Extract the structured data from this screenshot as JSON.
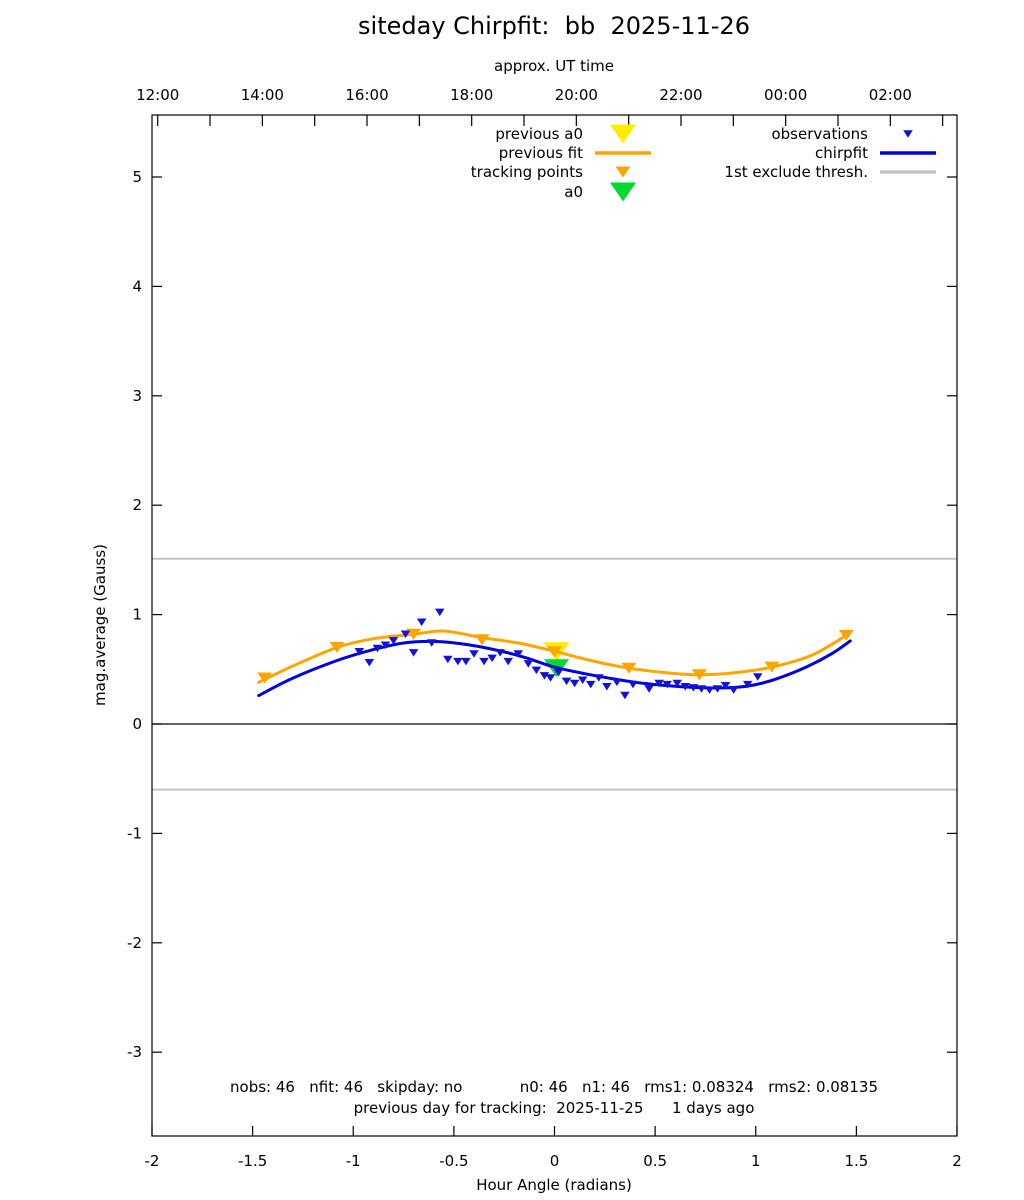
{
  "title": "siteday Chirpfit:  bb  2025-11-26",
  "footer": {
    "stats_line1": "nobs: 46   nfit: 46   skipday: no            n0: 46   n1: 46   rms1: 0.08324   rms2: 0.08135",
    "stats_line2": "previous day for tracking:  2025-11-25      1 days ago"
  },
  "chart_data": {
    "type": "scatter",
    "title": "siteday Chirpfit:  bb  2025-11-26",
    "top_axis": {
      "label": "approx. UT time",
      "tick_labels": [
        "12:00",
        "14:00",
        "16:00",
        "18:00",
        "20:00",
        "22:00",
        "00:00",
        "02:00"
      ],
      "hourly_ticks": [
        "12:00",
        "13:00",
        "14:00",
        "15:00",
        "16:00",
        "17:00",
        "18:00",
        "19:00",
        "20:00",
        "21:00",
        "22:00",
        "23:00",
        "00:00",
        "01:00",
        "02:00",
        "03:00"
      ]
    },
    "x_axis": {
      "label": "Hour Angle (radians)",
      "min": -2,
      "max": 2,
      "ticks": [
        -2,
        -1.5,
        -1,
        -0.5,
        0,
        0.5,
        1,
        1.5,
        2
      ],
      "tick_labels": [
        "-2",
        "-1.5",
        "-1",
        "-0.5",
        "0",
        "0.5",
        "1",
        "1.5",
        "2"
      ]
    },
    "y_axis": {
      "label": "mag.average (Gauss)",
      "min": -3.77,
      "max": 5.57,
      "ticks": [
        -3,
        -2,
        -1,
        0,
        1,
        2,
        3,
        4,
        5
      ],
      "tick_labels": [
        "-3",
        "-2",
        "-1",
        "0",
        "1",
        "2",
        "3",
        "4",
        "5"
      ]
    },
    "zero_line_y": 0,
    "exclude_thresholds": [
      1.51,
      -0.6
    ],
    "grid": "off",
    "legend_position": "top-inside",
    "colors": {
      "observations": "#1212d9",
      "chirpfit": "#0000e0",
      "previous_fit": "#ffa500",
      "tracking": "#ffa500",
      "previous_a0": "#ffec00",
      "a0": "#00d92e",
      "threshold": "#c4c4c4",
      "zero_line": "#000000"
    },
    "series": {
      "observations": [
        [
          -0.97,
          0.66
        ],
        [
          -0.92,
          0.56
        ],
        [
          -0.88,
          0.69
        ],
        [
          -0.84,
          0.72
        ],
        [
          -0.8,
          0.76
        ],
        [
          -0.74,
          0.82
        ],
        [
          -0.7,
          0.65
        ],
        [
          -0.66,
          0.93
        ],
        [
          -0.61,
          0.74
        ],
        [
          -0.57,
          1.02
        ],
        [
          -0.53,
          0.59
        ],
        [
          -0.48,
          0.57
        ],
        [
          -0.44,
          0.57
        ],
        [
          -0.4,
          0.64
        ],
        [
          -0.35,
          0.57
        ],
        [
          -0.31,
          0.6
        ],
        [
          -0.27,
          0.65
        ],
        [
          -0.23,
          0.57
        ],
        [
          -0.18,
          0.64
        ],
        [
          -0.13,
          0.55
        ],
        [
          -0.09,
          0.49
        ],
        [
          -0.05,
          0.44
        ],
        [
          -0.02,
          0.42
        ],
        [
          0.02,
          0.47
        ],
        [
          0.06,
          0.39
        ],
        [
          0.1,
          0.37
        ],
        [
          0.14,
          0.4
        ],
        [
          0.18,
          0.36
        ],
        [
          0.22,
          0.42
        ],
        [
          0.26,
          0.34
        ],
        [
          0.31,
          0.38
        ],
        [
          0.35,
          0.26
        ],
        [
          0.39,
          0.36
        ],
        [
          0.47,
          0.32
        ],
        [
          0.52,
          0.37
        ],
        [
          0.56,
          0.36
        ],
        [
          0.61,
          0.37
        ],
        [
          0.65,
          0.34
        ],
        [
          0.69,
          0.33
        ],
        [
          0.73,
          0.32
        ],
        [
          0.77,
          0.31
        ],
        [
          0.81,
          0.32
        ],
        [
          0.85,
          0.35
        ],
        [
          0.89,
          0.31
        ],
        [
          0.96,
          0.36
        ],
        [
          1.01,
          0.43
        ]
      ],
      "chirpfit_curve": [
        [
          -1.47,
          0.26
        ],
        [
          -1.3,
          0.42
        ],
        [
          -1.08,
          0.58
        ],
        [
          -0.9,
          0.68
        ],
        [
          -0.75,
          0.74
        ],
        [
          -0.6,
          0.755
        ],
        [
          -0.45,
          0.73
        ],
        [
          -0.3,
          0.68
        ],
        [
          -0.15,
          0.61
        ],
        [
          0.0,
          0.52
        ],
        [
          0.15,
          0.46
        ],
        [
          0.3,
          0.41
        ],
        [
          0.45,
          0.37
        ],
        [
          0.6,
          0.345
        ],
        [
          0.75,
          0.33
        ],
        [
          0.9,
          0.335
        ],
        [
          1.0,
          0.36
        ],
        [
          1.1,
          0.41
        ],
        [
          1.25,
          0.52
        ],
        [
          1.38,
          0.645
        ],
        [
          1.47,
          0.76
        ]
      ],
      "previous_fit_curve": [
        [
          -1.47,
          0.38
        ],
        [
          -1.3,
          0.53
        ],
        [
          -1.08,
          0.7
        ],
        [
          -0.9,
          0.78
        ],
        [
          -0.7,
          0.82
        ],
        [
          -0.55,
          0.85
        ],
        [
          -0.36,
          0.79
        ],
        [
          -0.18,
          0.74
        ],
        [
          0.0,
          0.665
        ],
        [
          0.18,
          0.58
        ],
        [
          0.37,
          0.51
        ],
        [
          0.55,
          0.47
        ],
        [
          0.72,
          0.45
        ],
        [
          0.9,
          0.47
        ],
        [
          1.08,
          0.52
        ],
        [
          1.28,
          0.63
        ],
        [
          1.45,
          0.81
        ]
      ],
      "tracking_points": [
        [
          -1.44,
          0.42
        ],
        [
          -1.08,
          0.7
        ],
        [
          -0.7,
          0.82
        ],
        [
          -0.36,
          0.77
        ],
        [
          0.0,
          0.66
        ],
        [
          0.37,
          0.51
        ],
        [
          0.72,
          0.45
        ],
        [
          1.08,
          0.52
        ],
        [
          1.45,
          0.81
        ]
      ],
      "previous_a0": [
        0.01,
        0.66
      ],
      "a0": [
        0.01,
        0.51
      ]
    },
    "legend": {
      "left": [
        {
          "label": "previous a0",
          "swatch": "triangle-big",
          "color_key": "previous_a0"
        },
        {
          "label": "previous fit",
          "swatch": "line",
          "color_key": "previous_fit"
        },
        {
          "label": "tracking points",
          "swatch": "triangle-med",
          "color_key": "tracking"
        },
        {
          "label": "a0",
          "swatch": "triangle-big",
          "color_key": "a0"
        }
      ],
      "right": [
        {
          "label": "observations",
          "swatch": "triangle-small",
          "color_key": "observations"
        },
        {
          "label": "chirpfit",
          "swatch": "line",
          "color_key": "chirpfit"
        },
        {
          "label": "1st exclude thresh.",
          "swatch": "line",
          "color_key": "threshold"
        }
      ]
    }
  }
}
